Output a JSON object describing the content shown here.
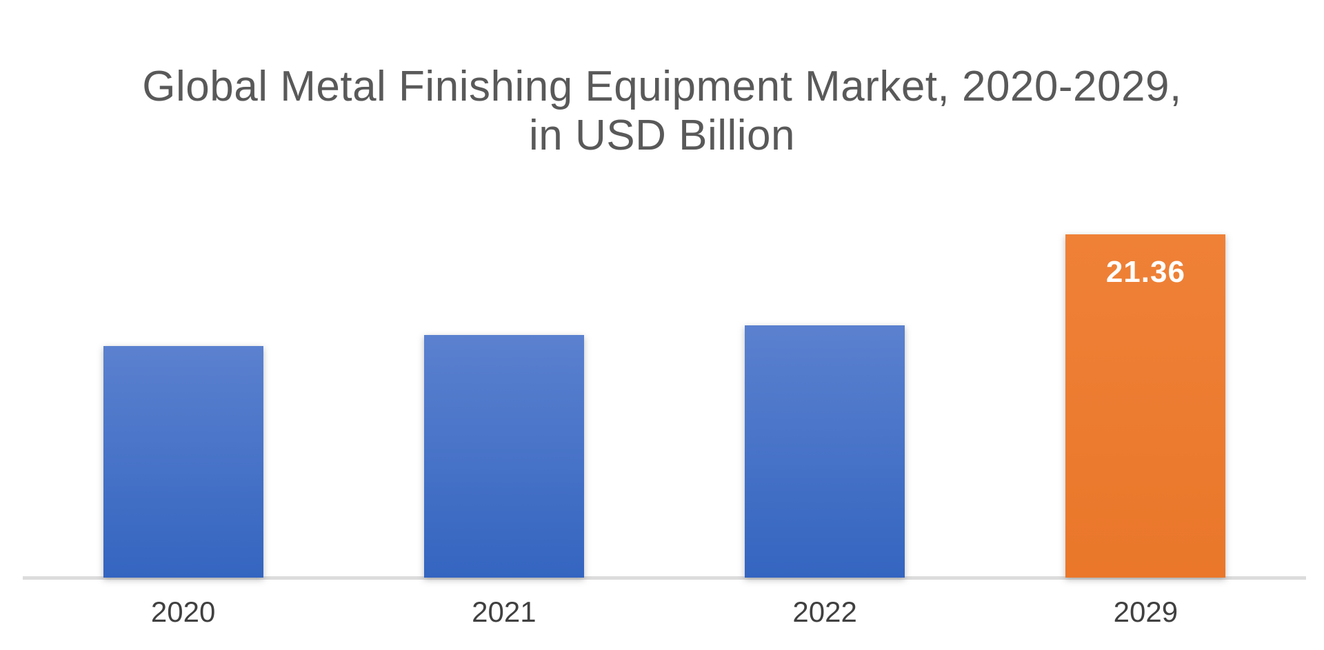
{
  "title": {
    "line1": "Global Metal Finishing Equipment Market, 2020-2029,",
    "line2": "in USD Billion",
    "color": "#595959"
  },
  "chart_data": {
    "type": "bar",
    "title": "Global Metal Finishing Equipment Market, 2020-2029, in USD Billion",
    "categories": [
      "2020",
      "2021",
      "2022",
      "2029"
    ],
    "values": [
      14.41,
      15.1,
      15.7,
      21.36
    ],
    "data_labels": [
      "",
      "",
      "",
      "21.36"
    ],
    "xlabel": "",
    "ylabel": "",
    "ylim": [
      0,
      21.36
    ],
    "grid": false,
    "legend": false,
    "bar_colors": [
      "#4472c4",
      "#4472c4",
      "#4472c4",
      "#ed7d31"
    ],
    "bar_gradients": [
      [
        "#5b81cf",
        "#3465c0"
      ],
      [
        "#5b81cf",
        "#3465c0"
      ],
      [
        "#5b81cf",
        "#3465c0"
      ],
      [
        "#ef8137",
        "#ea772a"
      ]
    ],
    "highlight_index": 3,
    "axis_line_color": "#dcdcdc",
    "label_color": "#404040",
    "value_label_color": "#ffffff"
  }
}
